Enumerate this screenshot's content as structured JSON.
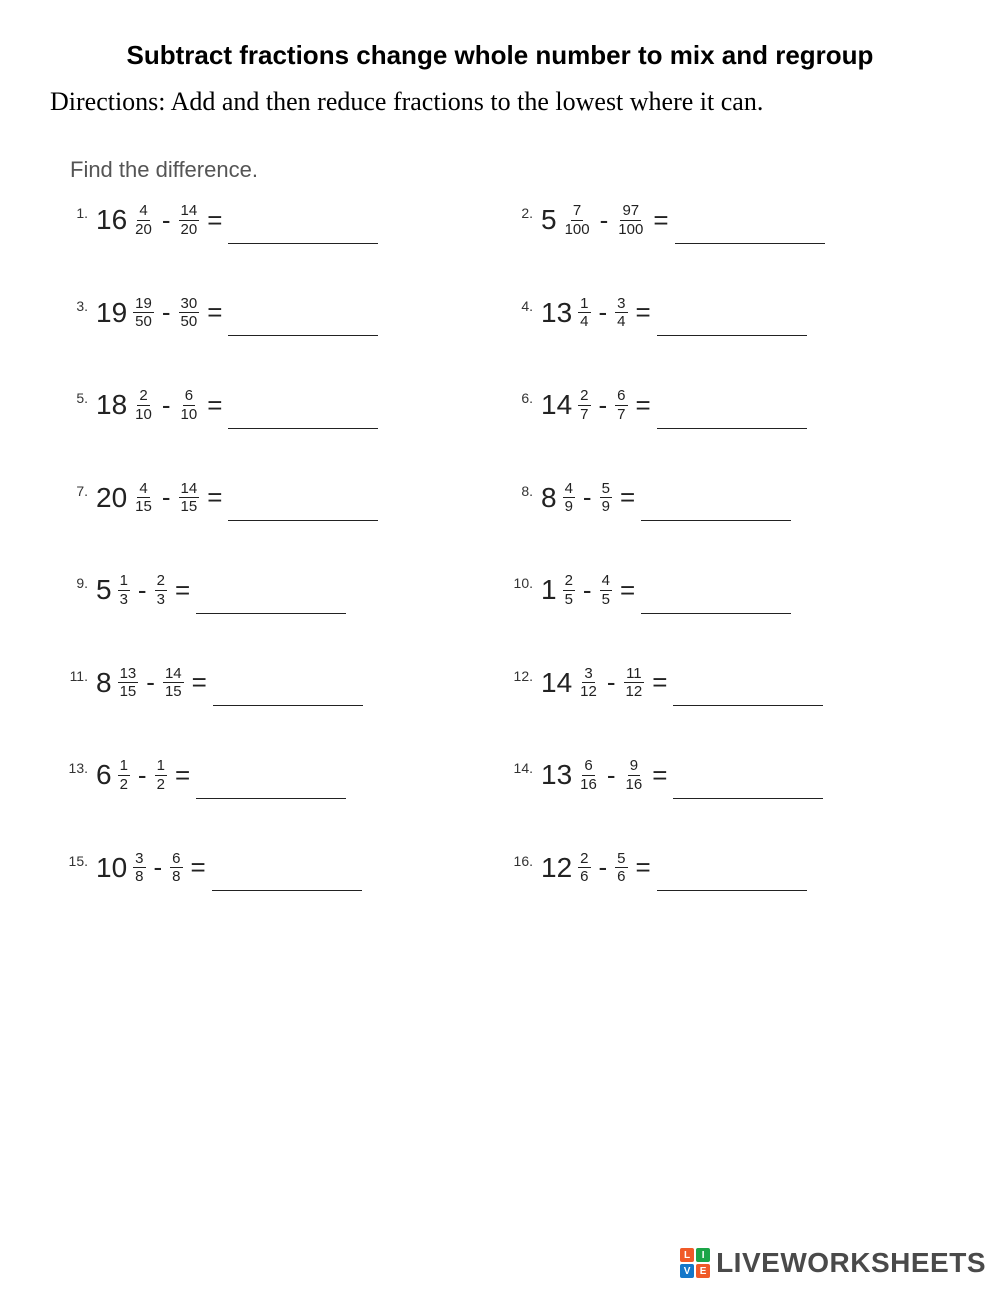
{
  "title": "Subtract fractions change whole number to mix and regroup",
  "directions": "Directions: Add and then reduce fractions to the lowest where it can.",
  "subtitle": "Find the difference.",
  "problems": [
    {
      "n": "1.",
      "whole": "16",
      "f1n": "4",
      "f1d": "20",
      "f2n": "14",
      "f2d": "20"
    },
    {
      "n": "2.",
      "whole": "5",
      "f1n": "7",
      "f1d": "100",
      "f2n": "97",
      "f2d": "100"
    },
    {
      "n": "3.",
      "whole": "19",
      "f1n": "19",
      "f1d": "50",
      "f2n": "30",
      "f2d": "50"
    },
    {
      "n": "4.",
      "whole": "13",
      "f1n": "1",
      "f1d": "4",
      "f2n": "3",
      "f2d": "4"
    },
    {
      "n": "5.",
      "whole": "18",
      "f1n": "2",
      "f1d": "10",
      "f2n": "6",
      "f2d": "10"
    },
    {
      "n": "6.",
      "whole": "14",
      "f1n": "2",
      "f1d": "7",
      "f2n": "6",
      "f2d": "7"
    },
    {
      "n": "7.",
      "whole": "20",
      "f1n": "4",
      "f1d": "15",
      "f2n": "14",
      "f2d": "15"
    },
    {
      "n": "8.",
      "whole": "8",
      "f1n": "4",
      "f1d": "9",
      "f2n": "5",
      "f2d": "9"
    },
    {
      "n": "9.",
      "whole": "5",
      "f1n": "1",
      "f1d": "3",
      "f2n": "2",
      "f2d": "3"
    },
    {
      "n": "10.",
      "whole": "1",
      "f1n": "2",
      "f1d": "5",
      "f2n": "4",
      "f2d": "5"
    },
    {
      "n": "11.",
      "whole": "8",
      "f1n": "13",
      "f1d": "15",
      "f2n": "14",
      "f2d": "15"
    },
    {
      "n": "12.",
      "whole": "14",
      "f1n": "3",
      "f1d": "12",
      "f2n": "11",
      "f2d": "12"
    },
    {
      "n": "13.",
      "whole": "6",
      "f1n": "1",
      "f1d": "2",
      "f2n": "1",
      "f2d": "2"
    },
    {
      "n": "14.",
      "whole": "13",
      "f1n": "6",
      "f1d": "16",
      "f2n": "9",
      "f2d": "16"
    },
    {
      "n": "15.",
      "whole": "10",
      "f1n": "3",
      "f1d": "8",
      "f2n": "6",
      "f2d": "8"
    },
    {
      "n": "16.",
      "whole": "12",
      "f1n": "2",
      "f1d": "6",
      "f2n": "5",
      "f2d": "6"
    }
  ],
  "watermark": {
    "text": "LIVEWORKSHEETS",
    "logo": [
      {
        "char": "L",
        "bg": "#f05a28"
      },
      {
        "char": "I",
        "bg": "#1ba548"
      },
      {
        "char": "V",
        "bg": "#1477c9"
      },
      {
        "char": "E",
        "bg": "#f05a28"
      }
    ]
  },
  "style": {
    "title_fontsize": 26,
    "directions_fontsize": 26,
    "problem_fontsize": 24,
    "pnum_fontsize": 14,
    "frac_fontsize": 15,
    "answer_line_width": 150,
    "text_color": "#000000",
    "subtle_color": "#555555",
    "background": "#ffffff"
  }
}
